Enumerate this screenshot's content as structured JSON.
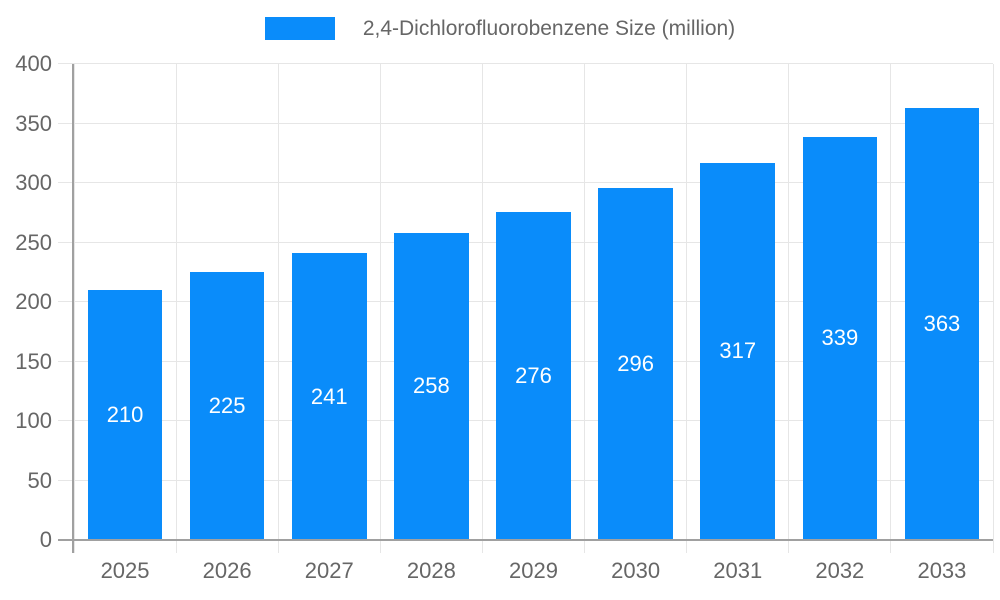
{
  "chart_data": {
    "type": "bar",
    "title": "",
    "legend": "2,4-Dichlorofluorobenzene Size (million)",
    "legend_position": "top",
    "categories": [
      "2025",
      "2026",
      "2027",
      "2028",
      "2029",
      "2030",
      "2031",
      "2032",
      "2033"
    ],
    "values": [
      210,
      225,
      241,
      258,
      276,
      296,
      317,
      339,
      363
    ],
    "xlabel": "",
    "ylabel": "",
    "ylim": [
      0,
      400
    ],
    "yticks": [
      0,
      50,
      100,
      150,
      200,
      250,
      300,
      350,
      400
    ],
    "grid": true,
    "bar_value_labels_visible": true,
    "colors": {
      "bar": "#0a8cfa",
      "bar_label": "#ffffff",
      "axis": "#a0a0a0",
      "grid": "#e6e6e6",
      "tick_label": "#666666",
      "legend_text": "#666666",
      "background": "#ffffff"
    }
  }
}
